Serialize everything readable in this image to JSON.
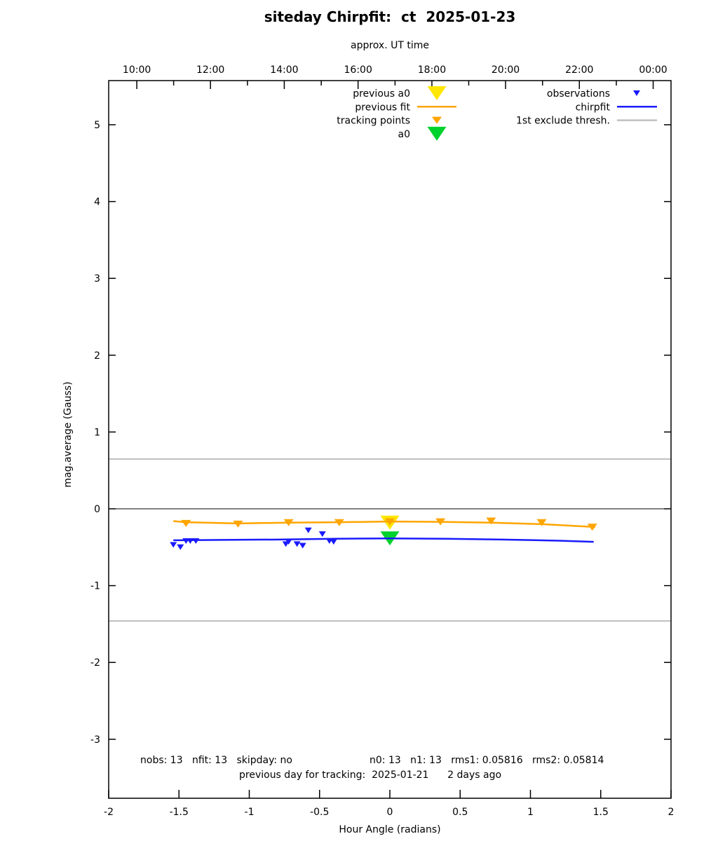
{
  "chart_data": {
    "type": "scatter",
    "title": "siteday Chirpfit:  ct  2025-01-23",
    "x2label": "approx. UT time",
    "xlabel": "Hour Angle (radians)",
    "ylabel": "mag.average (Gauss)",
    "xlim": [
      -2,
      2
    ],
    "ylim": [
      -3.77,
      5.58
    ],
    "grid": false,
    "zero_line_y": 0,
    "x_ticks": {
      "values": [
        -2,
        -1.5,
        -1,
        -0.5,
        0,
        0.5,
        1,
        1.5,
        2
      ],
      "labels": [
        "-2",
        "-1.5",
        "-1",
        "-0.5",
        "0",
        "0.5",
        "1",
        "1.5",
        "2"
      ]
    },
    "y_ticks": {
      "values": [
        -3,
        -2,
        -1,
        0,
        1,
        2,
        3,
        4,
        5
      ],
      "labels": [
        "-3",
        "-2",
        "-1",
        "0",
        "1",
        "2",
        "3",
        "4",
        "5"
      ]
    },
    "x2_ticks": {
      "labels": [
        "10:00",
        "12:00",
        "14:00",
        "16:00",
        "18:00",
        "20:00",
        "22:00",
        "00:00"
      ],
      "positions_ha": [
        -1.8,
        -1.276,
        -0.751,
        -0.226,
        0.299,
        0.823,
        1.348,
        1.873
      ],
      "minor_positions_ha": [
        -1.538,
        -1.013,
        -0.488,
        0.037,
        0.561,
        1.086,
        1.611
      ]
    },
    "series": [
      {
        "name": "1st exclude thresh.",
        "type": "hline",
        "color": "#c0c0c0",
        "y": [
          0.648,
          -1.46
        ]
      },
      {
        "name": "previous a0",
        "type": "scatter",
        "marker": "triangle-large",
        "color": "#ffe600",
        "x": [
          0.0
        ],
        "y": [
          -0.18
        ]
      },
      {
        "name": "a0",
        "type": "scatter",
        "marker": "triangle-large",
        "color": "#00d22d",
        "x": [
          0.0
        ],
        "y": [
          -0.385
        ]
      },
      {
        "name": "previous fit",
        "type": "line",
        "color": "#ffa500",
        "x": [
          -1.54,
          -1.45,
          -1.08,
          -0.72,
          -0.36,
          0.0,
          0.36,
          0.72,
          1.08,
          1.44,
          1.46
        ],
        "y": [
          -0.16,
          -0.175,
          -0.19,
          -0.18,
          -0.175,
          -0.165,
          -0.17,
          -0.18,
          -0.2,
          -0.235,
          -0.24
        ]
      },
      {
        "name": "chirpfit",
        "type": "line",
        "color": "#1a1aff",
        "x": [
          -1.54,
          -1.2,
          -0.8,
          -0.4,
          0.0,
          0.4,
          0.8,
          1.2,
          1.45
        ],
        "y": [
          -0.41,
          -0.405,
          -0.4,
          -0.39,
          -0.385,
          -0.39,
          -0.4,
          -0.415,
          -0.43
        ]
      },
      {
        "name": "tracking points",
        "type": "scatter",
        "marker": "triangle-small",
        "color": "#ffa500",
        "x": [
          -1.45,
          -1.08,
          -0.72,
          -0.36,
          0.0,
          0.36,
          0.72,
          1.08,
          1.44
        ],
        "y": [
          -0.19,
          -0.2,
          -0.18,
          -0.18,
          -0.17,
          -0.17,
          -0.16,
          -0.18,
          -0.24
        ]
      },
      {
        "name": "observations",
        "type": "scatter",
        "marker": "triangle-tiny",
        "color": "#1a1aff",
        "x": [
          -1.54,
          -1.49,
          -1.45,
          -1.42,
          -1.38,
          -0.74,
          -0.72,
          -0.66,
          -0.62,
          -0.58,
          -0.48,
          -0.43,
          -0.4
        ],
        "y": [
          -0.47,
          -0.5,
          -0.42,
          -0.42,
          -0.42,
          -0.46,
          -0.43,
          -0.46,
          -0.48,
          -0.28,
          -0.33,
          -0.42,
          -0.43
        ]
      }
    ],
    "legend": {
      "position": "top-inside",
      "left_column": [
        {
          "label": "previous a0",
          "marker": "triangle-large",
          "color": "#ffe600"
        },
        {
          "label": "previous fit",
          "marker": "line",
          "color": "#ffa500"
        },
        {
          "label": "tracking points",
          "marker": "triangle-small",
          "color": "#ffa500"
        },
        {
          "label": "a0",
          "marker": "triangle-large",
          "color": "#00d22d"
        }
      ],
      "right_column": [
        {
          "label": "observations",
          "marker": "triangle-tiny",
          "color": "#1a1aff"
        },
        {
          "label": "chirpfit",
          "marker": "line",
          "color": "#1a1aff"
        },
        {
          "label": "1st exclude thresh.",
          "marker": "line",
          "color": "#c0c0c0"
        }
      ]
    }
  },
  "stats": {
    "line1_left": "nobs: 13   nfit: 13   skipday: no",
    "line1_right": "n0: 13   n1: 13   rms1: 0.05816   rms2: 0.05814",
    "line2": "previous day for tracking:  2025-01-21      2 days ago"
  },
  "colors": {
    "observations": "#1a1aff",
    "chirpfit": "#1a1aff",
    "tracking": "#ffa500",
    "previous_fit": "#ffa500",
    "previous_a0": "#ffe600",
    "a0": "#00d22d",
    "threshold": "#c0c0c0",
    "axis": "#000000"
  }
}
